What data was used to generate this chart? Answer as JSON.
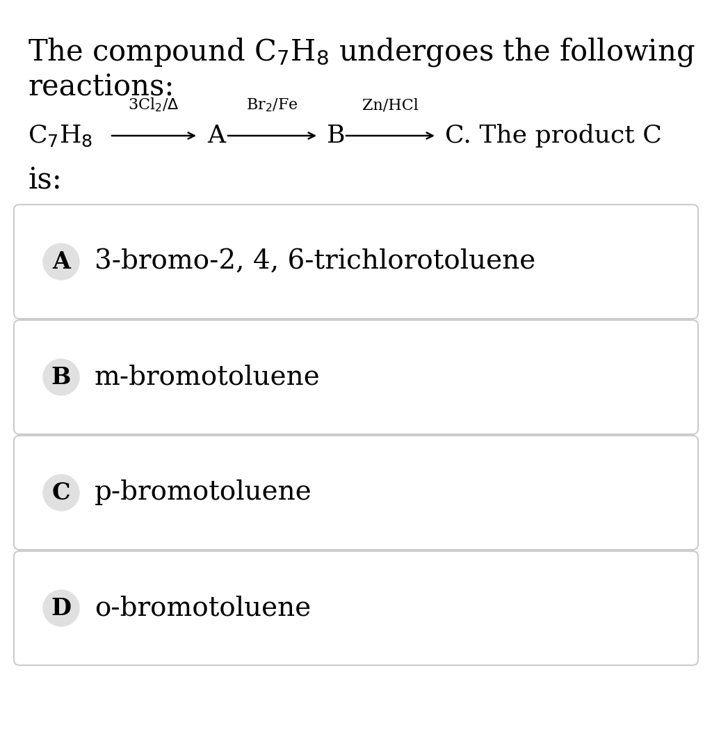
{
  "background_color": "#ffffff",
  "text_color": "#000000",
  "title_line1": "The compound C$_7$H$_8$ undergoes the following",
  "title_line2": "reactions:",
  "is_text": "is:",
  "reaction_c7h8": "C$_7$H$_8$",
  "reaction_A": "A",
  "reaction_B": "B",
  "reaction_end": "C. The product C",
  "reaction_label1": "3Cl$_2$/$\\Delta$",
  "reaction_label2": "Br$_2$/Fe",
  "reaction_label3": "Zn/HCl",
  "options": [
    {
      "label": "A",
      "text": "3-bromo-2, 4, 6-trichlorotoluene"
    },
    {
      "label": "B",
      "text": "m-bromotoluene"
    },
    {
      "label": "C",
      "text": "p-bromotoluene"
    },
    {
      "label": "D",
      "text": "o-bromotoluene"
    }
  ],
  "option_box_color": "#ffffff",
  "option_box_edge_color": "#cccccc",
  "option_label_bg": "#e0e0e0",
  "font_size_title": 30,
  "font_size_reaction_main": 26,
  "font_size_reaction_label": 16,
  "font_size_option_label": 24,
  "font_size_option_text": 28,
  "font_size_is": 30
}
